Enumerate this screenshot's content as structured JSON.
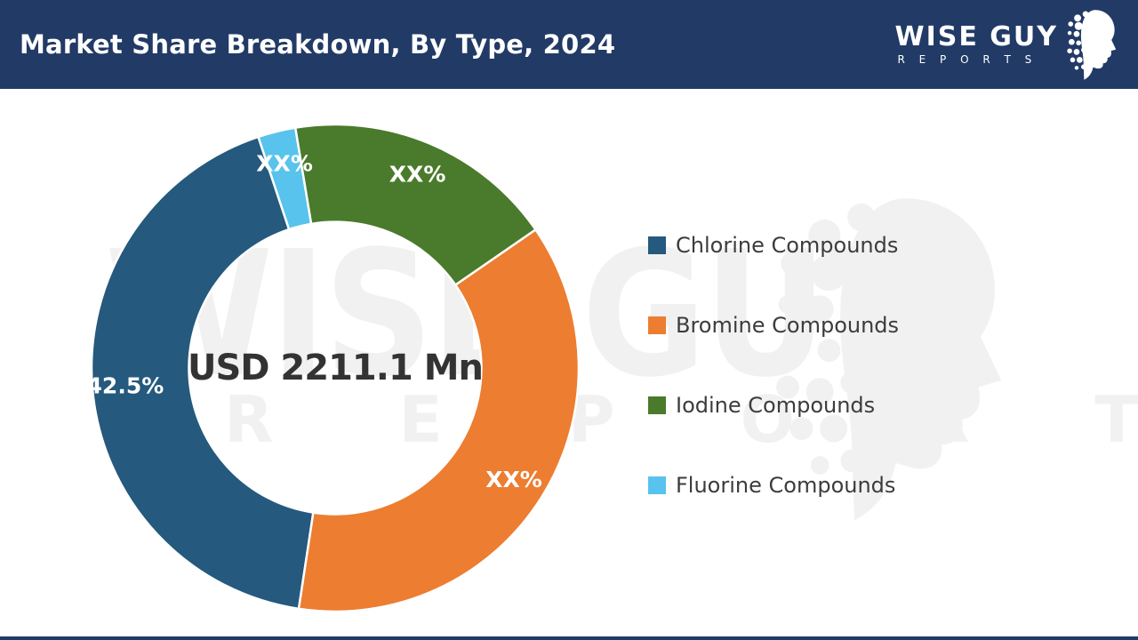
{
  "header": {
    "title": "Market Share Breakdown, By Type, 2024",
    "logo": {
      "line1": "WISE GUY",
      "line2": "R E P O R T S"
    }
  },
  "watermark": {
    "line1": "WISE GUY",
    "line2": "R E P O R T S"
  },
  "chart_data": {
    "type": "pie",
    "subtype": "donut",
    "title": "Market Share Breakdown, By Type, 2024",
    "center_label": "USD 2211.1 Mn",
    "segments": [
      {
        "label": "Chlorine Compounds",
        "value": 42.5,
        "display_label": "42.5%",
        "color": "#25597D"
      },
      {
        "label": "Bromine Compounds",
        "value": 37.0,
        "display_label": "XX%",
        "color": "#ED7D31"
      },
      {
        "label": "Iodine Compounds",
        "value": 18.0,
        "display_label": "XX%",
        "color": "#4A7A2B"
      },
      {
        "label": "Fluorine Compounds",
        "value": 2.5,
        "display_label": "XX%",
        "color": "#58C3EC"
      }
    ],
    "layout": {
      "legend_position": "right",
      "start_angle_deg": 188.6,
      "draw_order": [
        0,
        3,
        2,
        1
      ],
      "inner_radius_ratio": 0.6,
      "label_radius_ratio": 0.865
    }
  },
  "colors": {
    "header_bg": "#223A66",
    "footer_bar": "#223A66",
    "center_text": "#333333",
    "legend_text": "#3C3C3C",
    "slice_label_text": "#FFFFFF",
    "watermark": "#F1F1F1"
  }
}
